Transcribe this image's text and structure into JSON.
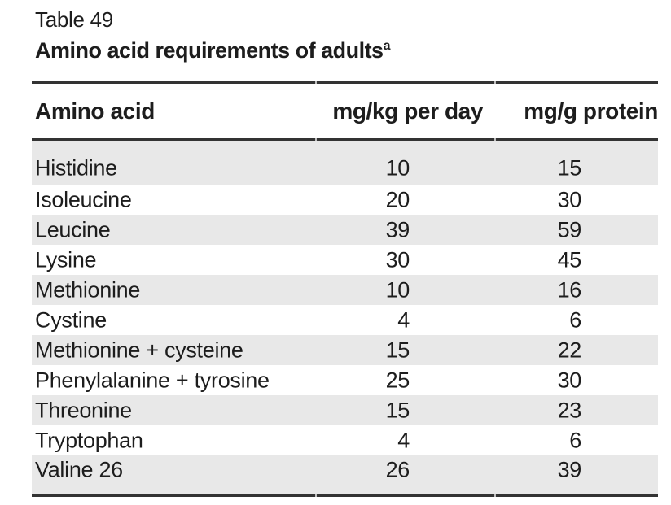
{
  "table": {
    "number": "Table 49",
    "title": "Amino acid requirements of adults",
    "title_superscript": "a",
    "columns": [
      "Amino acid",
      "mg/kg per day",
      "mg/g protein"
    ],
    "rows": [
      {
        "name": "Histidine",
        "mg_per_kg_per_day": "10",
        "mg_per_g_protein": "15"
      },
      {
        "name": "Isoleucine",
        "mg_per_kg_per_day": "20",
        "mg_per_g_protein": "30"
      },
      {
        "name": "Leucine",
        "mg_per_kg_per_day": "39",
        "mg_per_g_protein": "59"
      },
      {
        "name": "Lysine",
        "mg_per_kg_per_day": "30",
        "mg_per_g_protein": "45"
      },
      {
        "name": "Methionine",
        "mg_per_kg_per_day": "10",
        "mg_per_g_protein": "16"
      },
      {
        "name": "Cystine",
        "mg_per_kg_per_day": "4",
        "mg_per_g_protein": "6"
      },
      {
        "name": "Methionine + cysteine",
        "mg_per_kg_per_day": "15",
        "mg_per_g_protein": "22"
      },
      {
        "name": "Phenylalanine + tyrosine",
        "mg_per_kg_per_day": "25",
        "mg_per_g_protein": "30"
      },
      {
        "name": "Threonine",
        "mg_per_kg_per_day": "15",
        "mg_per_g_protein": "23"
      },
      {
        "name": "Tryptophan",
        "mg_per_kg_per_day": "4",
        "mg_per_g_protein": "6"
      },
      {
        "name": "Valine 26",
        "mg_per_kg_per_day": "26",
        "mg_per_g_protein": "39"
      }
    ]
  },
  "colors": {
    "row_stripe": "#e8e8e8",
    "rule": "#333333",
    "text": "#1d1d1d",
    "background": "#ffffff"
  }
}
